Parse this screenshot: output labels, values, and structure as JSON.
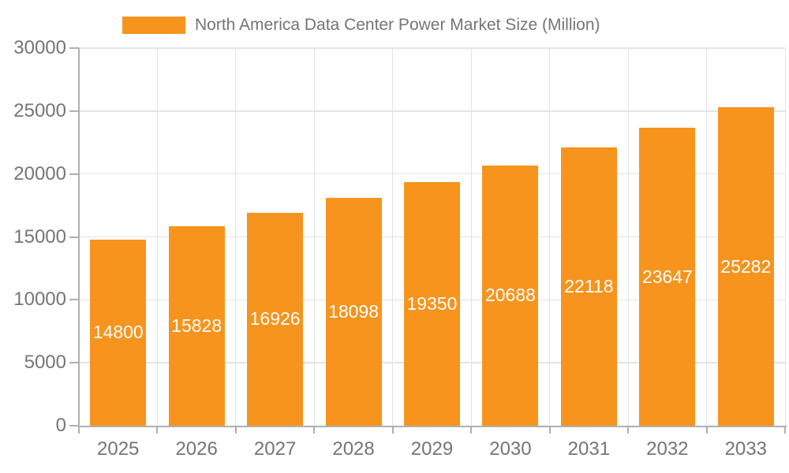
{
  "chart_data": {
    "type": "bar",
    "title": "North America Data Center Power Market Size (Million)",
    "categories": [
      "2025",
      "2026",
      "2027",
      "2028",
      "2029",
      "2030",
      "2031",
      "2032",
      "2033"
    ],
    "values": [
      14800,
      15828,
      16926,
      18098,
      19350,
      20688,
      22118,
      23647,
      25282
    ],
    "xlabel": "",
    "ylabel": "",
    "ylim": [
      0,
      30000
    ],
    "y_ticks": [
      0,
      5000,
      10000,
      15000,
      20000,
      25000,
      30000
    ],
    "grid": true,
    "legend_position": "top",
    "value_labels": "inside-center",
    "colors": {
      "bar": "#F7941E",
      "axis": "#B0B0B0",
      "grid": "#E3E3E3",
      "text": "#757575",
      "value_label": "#FFFFFF",
      "background": "#FFFFFF"
    }
  }
}
